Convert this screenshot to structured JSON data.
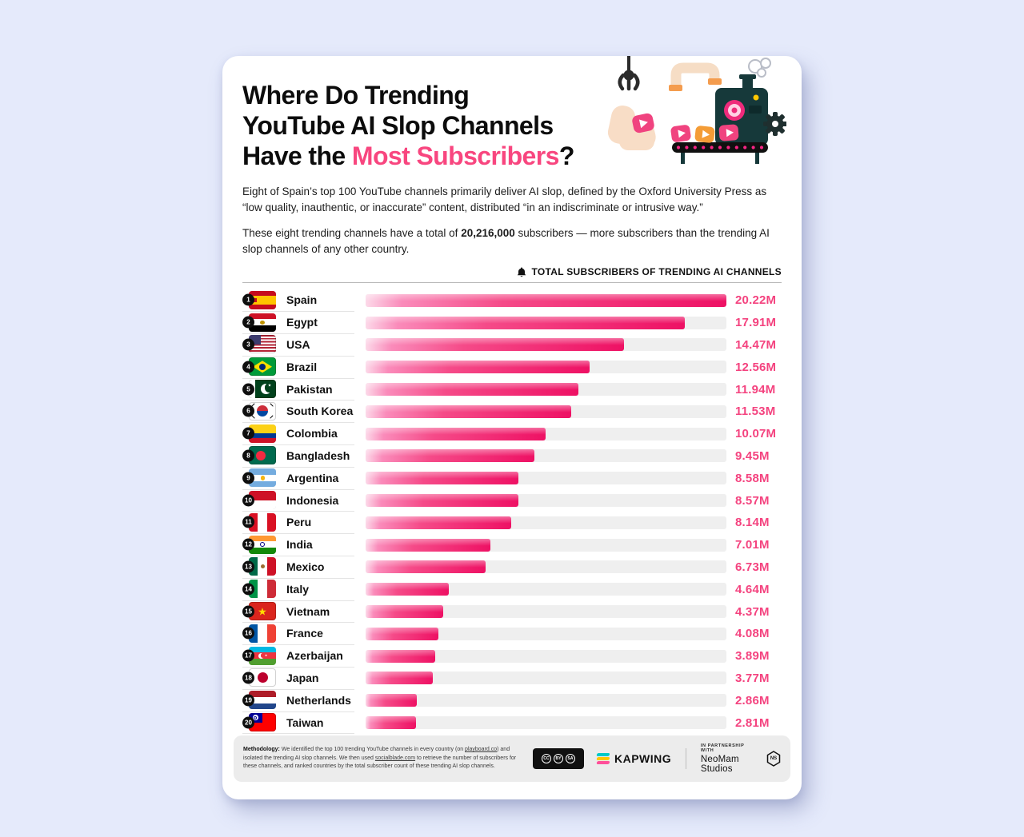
{
  "header": {
    "title_line1": "Where Do Trending",
    "title_line2": "YouTube AI Slop Channels",
    "title_line3_prefix": "Have the ",
    "title_line3_highlight": "Most Subscribers",
    "title_line3_suffix": "?",
    "accent_color": "#f8467f"
  },
  "intro": {
    "p1": "Eight of Spain’s top 100 YouTube channels primarily deliver AI slop, defined by the Oxford University Press as “low quality, inauthentic, or inaccurate” content, distributed “in an indiscriminate or intrusive way.”",
    "p2_before": "These eight trending channels have a total of ",
    "p2_bold": "20,216,000",
    "p2_after": " subscribers — more subscribers than the trending AI slop channels of any other country."
  },
  "chart": {
    "header_label": "TOTAL SUBSCRIBERS OF TRENDING AI CHANNELS",
    "max_value": 20.22,
    "track_color": "#efefef",
    "bar_color_start": "#fcd9e9",
    "bar_color_end": "#ee1164",
    "value_color": "#f4437f"
  },
  "chart_data": {
    "type": "bar",
    "orientation": "horizontal",
    "title": "Where Do Trending YouTube AI Slop Channels Have the Most Subscribers?",
    "subtitle": "TOTAL SUBSCRIBERS OF TRENDING AI CHANNELS",
    "unit": "millions of subscribers",
    "xlim": [
      0,
      20.22
    ],
    "grid": false,
    "legend": "none",
    "categories": [
      "Spain",
      "Egypt",
      "USA",
      "Brazil",
      "Pakistan",
      "South Korea",
      "Colombia",
      "Bangladesh",
      "Argentina",
      "Indonesia",
      "Peru",
      "India",
      "Mexico",
      "Italy",
      "Vietnam",
      "France",
      "Azerbaijan",
      "Japan",
      "Netherlands",
      "Taiwan"
    ],
    "values": [
      20.22,
      17.91,
      14.47,
      12.56,
      11.94,
      11.53,
      10.07,
      9.45,
      8.58,
      8.57,
      8.14,
      7.01,
      6.73,
      4.64,
      4.37,
      4.08,
      3.89,
      3.77,
      2.86,
      2.81
    ],
    "labels": [
      "20.22M",
      "17.91M",
      "14.47M",
      "12.56M",
      "11.94M",
      "11.53M",
      "10.07M",
      "9.45M",
      "8.58M",
      "8.57M",
      "8.14M",
      "7.01M",
      "6.73M",
      "4.64M",
      "4.37M",
      "4.08M",
      "3.89M",
      "3.77M",
      "2.86M",
      "2.81M"
    ]
  },
  "rows": [
    {
      "rank": "1",
      "country": "Spain",
      "value": 20.22,
      "label": "20.22M",
      "flag": {
        "dir": "h",
        "stripes": [
          [
            "#c60b1e",
            1
          ],
          [
            "#ffc400",
            2
          ],
          [
            "#c60b1e",
            1
          ]
        ],
        "ov": [
          {
            "t": "r",
            "c": "#c60b1e",
            "x": 6,
            "y": 9,
            "w": 4,
            "h": 5
          }
        ]
      }
    },
    {
      "rank": "2",
      "country": "Egypt",
      "value": 17.91,
      "label": "17.91M",
      "flag": {
        "dir": "h",
        "stripes": [
          [
            "#ce1126",
            1
          ],
          [
            "#ffffff",
            1
          ],
          [
            "#000000",
            1
          ]
        ],
        "ov": [
          {
            "t": "c",
            "c": "#bf9300",
            "x": 14,
            "y": 9,
            "w": 6,
            "h": 5
          }
        ]
      }
    },
    {
      "rank": "3",
      "country": "USA",
      "value": 14.47,
      "label": "14.47M",
      "flag": {
        "us": true,
        "ov": [
          {
            "t": "r",
            "c": "#3c3b6e",
            "x": 0,
            "y": 0,
            "w": 15,
            "h": 12
          }
        ]
      }
    },
    {
      "rank": "4",
      "country": "Brazil",
      "value": 12.56,
      "label": "12.56M",
      "flag": {
        "base": "#009b3a",
        "ov": [
          {
            "t": "d",
            "c": "#fedf00",
            "x": 5,
            "y": 4,
            "w": 24,
            "h": 15
          },
          {
            "t": "c",
            "c": "#002776",
            "x": 13,
            "y": 7.5,
            "w": 8,
            "h": 8
          }
        ]
      }
    },
    {
      "rank": "5",
      "country": "Pakistan",
      "value": 11.94,
      "label": "11.94M",
      "flag": {
        "base": "#01411c",
        "ov": [
          {
            "t": "r",
            "c": "#ffffff",
            "x": 0,
            "y": 0,
            "w": 8,
            "h": 23
          },
          {
            "t": "c",
            "c": "#ffffff",
            "x": 15,
            "y": 5,
            "w": 13,
            "h": 13
          },
          {
            "t": "c",
            "c": "#01411c",
            "x": 19.5,
            "y": 4,
            "w": 11.5,
            "h": 11.5
          },
          {
            "t": "star",
            "c": "#ffffff",
            "x": 26,
            "y": 8,
            "s": 5
          }
        ]
      }
    },
    {
      "rank": "6",
      "country": "South Korea",
      "value": 11.53,
      "label": "11.53M",
      "flag": {
        "base": "#ffffff",
        "ov": [
          {
            "t": "c",
            "grad": "linear-gradient(180deg,#cd2e3a 50%,#0047a0 50%)",
            "x": 10,
            "y": 4.5,
            "w": 14,
            "h": 14
          },
          {
            "t": "r",
            "c": "#000000",
            "x": 3,
            "y": 3.5,
            "w": 5,
            "h": 1.3,
            "rot": -45
          },
          {
            "t": "r",
            "c": "#000000",
            "x": 26,
            "y": 3.5,
            "w": 5,
            "h": 1.3,
            "rot": 45
          },
          {
            "t": "r",
            "c": "#000000",
            "x": 3,
            "y": 18,
            "w": 5,
            "h": 1.3,
            "rot": 45
          },
          {
            "t": "r",
            "c": "#000000",
            "x": 26,
            "y": 18,
            "w": 5,
            "h": 1.3,
            "rot": -45
          }
        ]
      }
    },
    {
      "rank": "7",
      "country": "Colombia",
      "value": 10.07,
      "label": "10.07M",
      "flag": {
        "dir": "h",
        "stripes": [
          [
            "#fcd116",
            2
          ],
          [
            "#003893",
            1
          ],
          [
            "#ce1126",
            1
          ]
        ]
      }
    },
    {
      "rank": "8",
      "country": "Bangladesh",
      "value": 9.45,
      "label": "9.45M",
      "flag": {
        "base": "#006a4e",
        "ov": [
          {
            "t": "c",
            "c": "#f42a41",
            "x": 9,
            "y": 5.5,
            "w": 12,
            "h": 12
          }
        ]
      }
    },
    {
      "rank": "9",
      "country": "Argentina",
      "value": 8.58,
      "label": "8.58M",
      "flag": {
        "dir": "h",
        "stripes": [
          [
            "#74acdf",
            1
          ],
          [
            "#ffffff",
            1
          ],
          [
            "#74acdf",
            1
          ]
        ],
        "ov": [
          {
            "t": "c",
            "c": "#f6b40e",
            "x": 14.5,
            "y": 9,
            "w": 5.5,
            "h": 5.5
          }
        ]
      }
    },
    {
      "rank": "10",
      "country": "Indonesia",
      "value": 8.57,
      "label": "8.57M",
      "flag": {
        "dir": "h",
        "stripes": [
          [
            "#ce1126",
            1
          ],
          [
            "#ffffff",
            1
          ]
        ]
      }
    },
    {
      "rank": "11",
      "country": "Peru",
      "value": 8.14,
      "label": "8.14M",
      "flag": {
        "dir": "v",
        "stripes": [
          [
            "#d91023",
            1
          ],
          [
            "#ffffff",
            1
          ],
          [
            "#d91023",
            1
          ]
        ]
      }
    },
    {
      "rank": "12",
      "country": "India",
      "value": 7.01,
      "label": "7.01M",
      "flag": {
        "dir": "h",
        "stripes": [
          [
            "#ff9933",
            1
          ],
          [
            "#ffffff",
            1
          ],
          [
            "#138808",
            1
          ]
        ],
        "ov": [
          {
            "t": "c",
            "c": "#ffffff",
            "bd": "1.3px solid #000080",
            "x": 13.5,
            "y": 8,
            "w": 6.5,
            "h": 6.5
          }
        ]
      }
    },
    {
      "rank": "13",
      "country": "Mexico",
      "value": 6.73,
      "label": "6.73M",
      "flag": {
        "dir": "v",
        "stripes": [
          [
            "#006847",
            1
          ],
          [
            "#ffffff",
            1
          ],
          [
            "#ce1126",
            1
          ]
        ],
        "ov": [
          {
            "t": "c",
            "c": "#9c6b30",
            "x": 14.5,
            "y": 9,
            "w": 5,
            "h": 5
          }
        ]
      }
    },
    {
      "rank": "14",
      "country": "Italy",
      "value": 4.64,
      "label": "4.64M",
      "flag": {
        "dir": "v",
        "stripes": [
          [
            "#009246",
            1
          ],
          [
            "#ffffff",
            1
          ],
          [
            "#ce2b37",
            1
          ]
        ]
      }
    },
    {
      "rank": "15",
      "country": "Vietnam",
      "value": 4.37,
      "label": "4.37M",
      "flag": {
        "base": "#da251d",
        "ov": [
          {
            "t": "star",
            "c": "#ffde00",
            "x": 17,
            "y": 11.5,
            "s": 13
          }
        ]
      }
    },
    {
      "rank": "16",
      "country": "France",
      "value": 4.08,
      "label": "4.08M",
      "flag": {
        "dir": "v",
        "stripes": [
          [
            "#0055a4",
            1
          ],
          [
            "#ffffff",
            1
          ],
          [
            "#ef4135",
            1
          ]
        ]
      }
    },
    {
      "rank": "17",
      "country": "Azerbaijan",
      "value": 3.89,
      "label": "3.89M",
      "flag": {
        "dir": "h",
        "stripes": [
          [
            "#00b9e4",
            1
          ],
          [
            "#ef3340",
            1
          ],
          [
            "#509e2f",
            1
          ]
        ],
        "ov": [
          {
            "t": "c",
            "c": "#ffffff",
            "x": 12,
            "y": 8,
            "w": 7,
            "h": 7
          },
          {
            "t": "c",
            "c": "#ef3340",
            "x": 14.5,
            "y": 8.6,
            "w": 5.8,
            "h": 5.8
          },
          {
            "t": "star",
            "c": "#ffffff",
            "x": 21.5,
            "y": 11.5,
            "s": 4
          }
        ]
      }
    },
    {
      "rank": "18",
      "country": "Japan",
      "value": 3.77,
      "label": "3.77M",
      "flag": {
        "base": "#ffffff",
        "ov": [
          {
            "t": "c",
            "c": "#bc002d",
            "x": 10.5,
            "y": 5,
            "w": 13,
            "h": 13
          }
        ]
      }
    },
    {
      "rank": "19",
      "country": "Netherlands",
      "value": 2.86,
      "label": "2.86M",
      "flag": {
        "dir": "h",
        "stripes": [
          [
            "#ae1c28",
            1
          ],
          [
            "#ffffff",
            1
          ],
          [
            "#21468b",
            1
          ]
        ]
      }
    },
    {
      "rank": "20",
      "country": "Taiwan",
      "value": 2.81,
      "label": "2.81M",
      "flag": {
        "base": "#fe0000",
        "ov": [
          {
            "t": "r",
            "c": "#000095",
            "x": 0,
            "y": 0,
            "w": 17,
            "h": 11.5
          },
          {
            "t": "c",
            "c": "#ffffff",
            "x": 4.5,
            "y": 2.2,
            "w": 7,
            "h": 7
          },
          {
            "t": "c",
            "c": "#000095",
            "x": 6,
            "y": 3.7,
            "w": 4,
            "h": 4
          },
          {
            "t": "c",
            "c": "#ffffff",
            "x": 6.8,
            "y": 4.5,
            "w": 2.4,
            "h": 2.4
          }
        ]
      }
    }
  ],
  "footer": {
    "methodology_label": "Methodology:",
    "m1": " We identified the top 100 trending YouTube channels in every country (on ",
    "link1": "playboard.co",
    "m2": ") and isolated the trending AI slop channels. We then used ",
    "link2": "socialblade.com",
    "m3": " to retrieve the number of subscribers for these channels, and ranked countries by the total subscriber count of these trending AI slop channels.",
    "license_icons": [
      "CC",
      "BY",
      "SA"
    ],
    "brand": "KAPWING",
    "brand_colors": [
      "#00c9c8",
      "#ffc700",
      "#ff4f9a"
    ],
    "partnership_label": "IN PARTNERSHIP WITH",
    "partner": "NeoMam Studios",
    "partner_logo": "NS"
  }
}
